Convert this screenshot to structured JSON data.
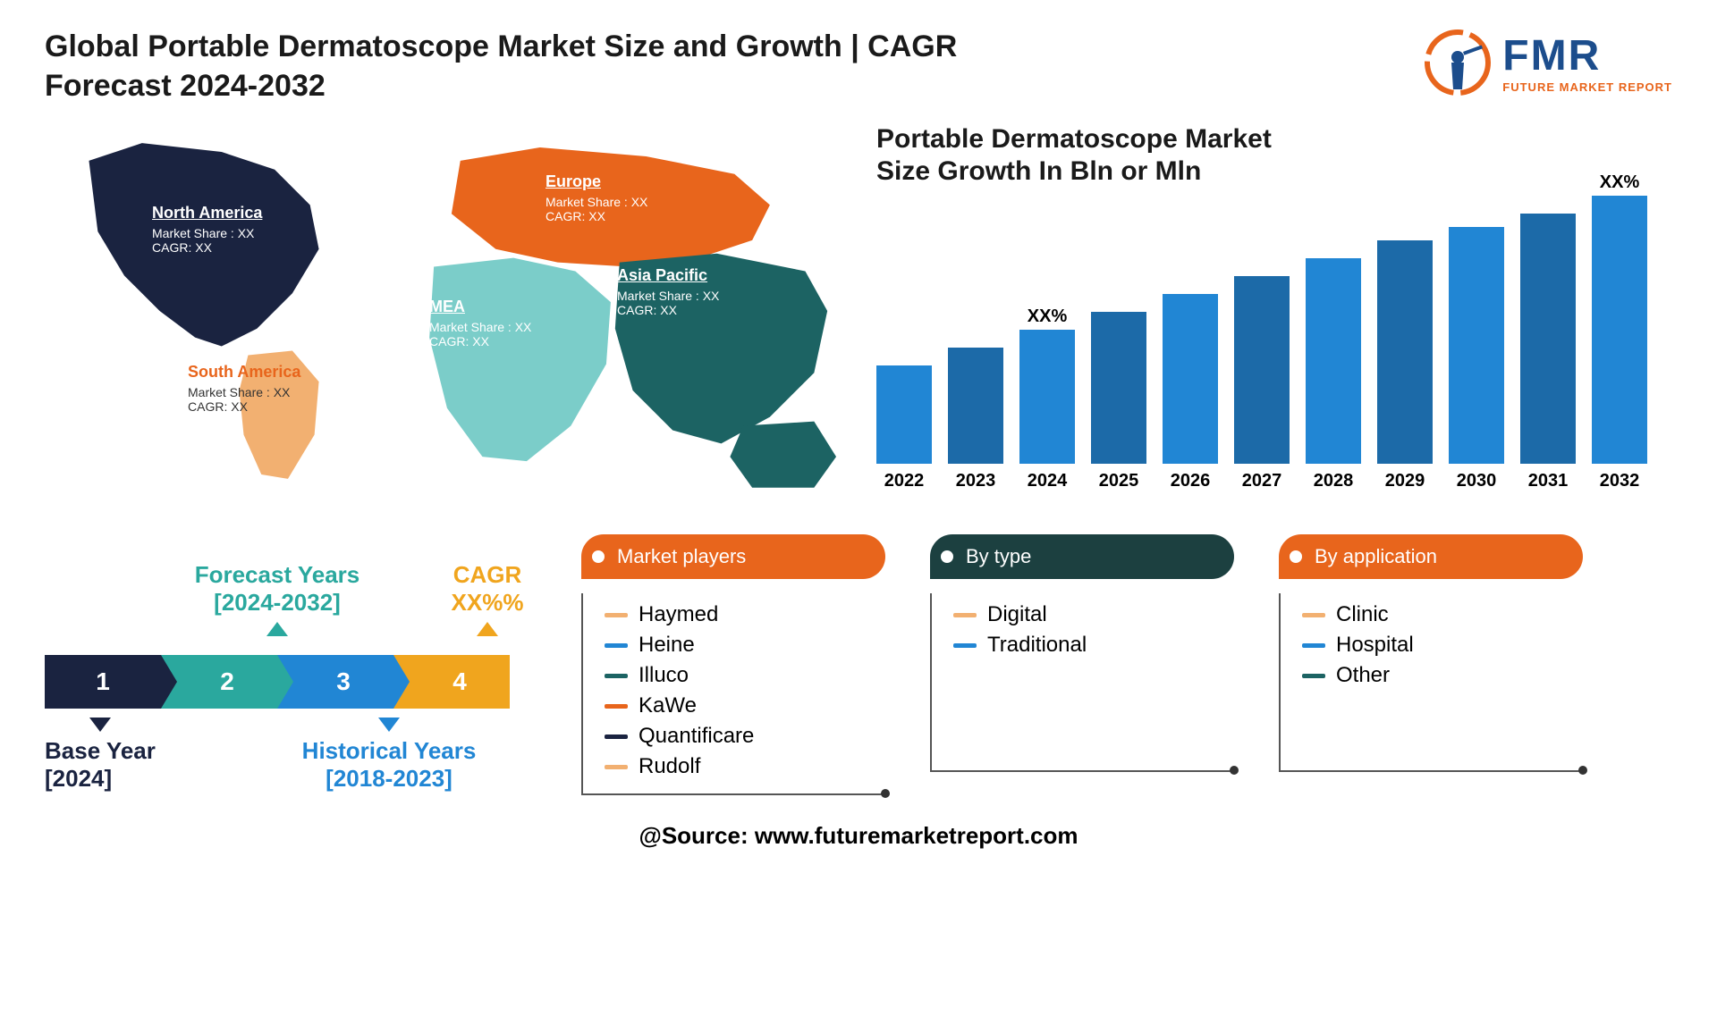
{
  "title": "Global Portable Dermatoscope Market Size and Growth | CAGR Forecast 2024-2032",
  "logo": {
    "main": "FMR",
    "sub": "FUTURE MARKET REPORT"
  },
  "chart": {
    "title": "Portable Dermatoscope Market Size Growth In Bln or Mln",
    "type": "bar",
    "years": [
      "2022",
      "2023",
      "2024",
      "2025",
      "2026",
      "2027",
      "2028",
      "2029",
      "2030",
      "2031",
      "2032"
    ],
    "heights": [
      110,
      130,
      150,
      170,
      190,
      210,
      230,
      250,
      265,
      280,
      300
    ],
    "colors": [
      "#2186d4",
      "#1c6aa8",
      "#2186d4",
      "#1c6aa8",
      "#2186d4",
      "#1c6aa8",
      "#2186d4",
      "#1c6aa8",
      "#2186d4",
      "#1c6aa8",
      "#2186d4"
    ],
    "annotations": [
      {
        "idx": 2,
        "text": "XX%"
      },
      {
        "idx": 10,
        "text": "XX%"
      }
    ],
    "label_fontsize": 20
  },
  "map": {
    "regions": [
      {
        "name": "North America",
        "share": "Market Share : XX",
        "cagr": "CAGR: XX",
        "color": "#1a2340"
      },
      {
        "name": "South America",
        "share": "Market Share : XX",
        "cagr": "CAGR: XX",
        "color": "#f2b071"
      },
      {
        "name": "Europe",
        "share": "Market Share : XX",
        "cagr": "CAGR: XX",
        "color": "#e8651c"
      },
      {
        "name": "MEA",
        "share": "Market Share : XX",
        "cagr": "CAGR: XX",
        "color": "#7bcdc9"
      },
      {
        "name": "Asia Pacific",
        "share": "Market Share : XX",
        "cagr": "CAGR: XX",
        "color": "#1c6363"
      }
    ]
  },
  "timeline": {
    "base": {
      "label": "Base Year",
      "value": "[2024]",
      "color": "#1a2340"
    },
    "forecast": {
      "label": "Forecast Years",
      "value": "[2024-2032]",
      "color": "#2aa89e"
    },
    "historical": {
      "label": "Historical Years",
      "value": "[2018-2023]",
      "color": "#2186d4"
    },
    "cagr": {
      "label": "CAGR",
      "value": "XX%%",
      "color": "#f0a51e"
    },
    "nums": [
      "1",
      "2",
      "3",
      "4"
    ]
  },
  "segments": [
    {
      "title": "Market players",
      "header_color": "#e8651c",
      "items": [
        {
          "label": "Haymed",
          "color": "#f2b071"
        },
        {
          "label": "Heine",
          "color": "#2186d4"
        },
        {
          "label": "Illuco",
          "color": "#1c6363"
        },
        {
          "label": "KaWe",
          "color": "#e8651c"
        },
        {
          "label": "Quantificare",
          "color": "#1a2340"
        },
        {
          "label": "Rudolf",
          "color": "#f2b071"
        }
      ]
    },
    {
      "title": "By type",
      "header_color": "#1c4040",
      "items": [
        {
          "label": "Digital",
          "color": "#f2b071"
        },
        {
          "label": "Traditional",
          "color": "#2186d4"
        }
      ]
    },
    {
      "title": "By application",
      "header_color": "#e8651c",
      "items": [
        {
          "label": "Clinic",
          "color": "#f2b071"
        },
        {
          "label": "Hospital",
          "color": "#2186d4"
        },
        {
          "label": "Other",
          "color": "#1c6363"
        }
      ]
    }
  ],
  "source": "@Source: www.futuremarketreport.com"
}
